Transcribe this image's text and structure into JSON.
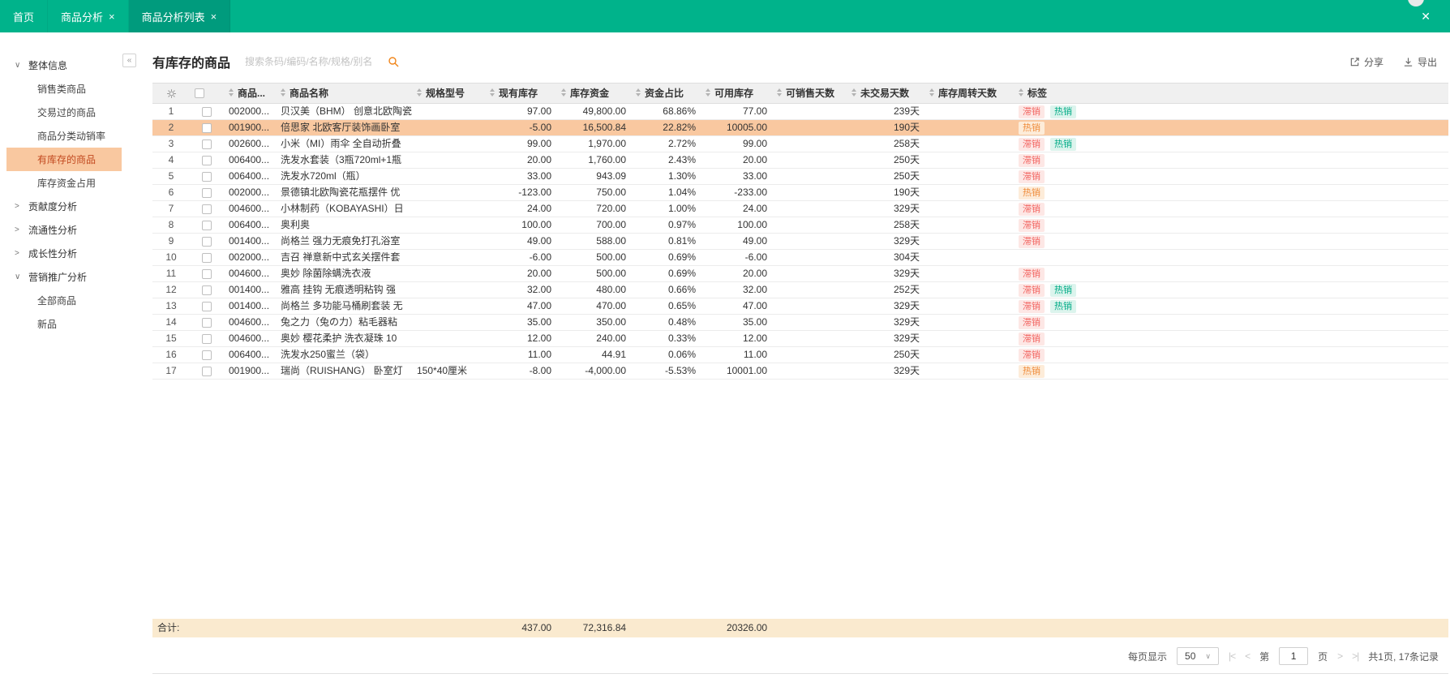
{
  "colors": {
    "accent_teal": "#00b38b",
    "active_tab": "#009b7d",
    "highlight_orange": "#f9c8a0",
    "summary_bg": "#faeacf",
    "tag_red": "#f2635f",
    "tag_teal": "#00ab86",
    "tag_orange": "#ef8b3a",
    "search_icon_orange": "#f08519"
  },
  "window": {
    "close": "✕"
  },
  "tabs": [
    {
      "label": "首页",
      "closable": false,
      "active": false
    },
    {
      "label": "商品分析",
      "closable": true,
      "active": false
    },
    {
      "label": "商品分析列表",
      "closable": true,
      "active": true
    }
  ],
  "sidebar": {
    "collapse_icon": "«",
    "groups": [
      {
        "label": "整体信息",
        "expanded": true,
        "selected": "有库存的商品",
        "items": [
          "销售类商品",
          "交易过的商品",
          "商品分类动销率",
          "有库存的商品",
          "库存资金占用"
        ]
      },
      {
        "label": "贡献度分析",
        "expanded": false,
        "items": []
      },
      {
        "label": "流通性分析",
        "expanded": false,
        "items": []
      },
      {
        "label": "成长性分析",
        "expanded": false,
        "items": []
      },
      {
        "label": "营销推广分析",
        "expanded": true,
        "items": [
          "全部商品",
          "新品"
        ]
      }
    ]
  },
  "main": {
    "title": "有库存的商品",
    "search_placeholder": "搜索条码/编码/名称/规格/别名",
    "share_label": "分享",
    "export_label": "导出",
    "table": {
      "columns": [
        "商品...",
        "商品名称",
        "规格型号",
        "现有库存",
        "库存资金",
        "资金占比",
        "可用库存",
        "可销售天数",
        "未交易天数",
        "库存周转天数",
        "标签"
      ],
      "rows": [
        {
          "index": "1",
          "code": "002000...",
          "name": "贝汉美（BHM） 创意北欧陶瓷",
          "spec": "",
          "stock": "97.00",
          "fund": "49,800.00",
          "ratio": "68.86%",
          "avail": "77.00",
          "sell_days": "",
          "no_trade": "239天",
          "turnover": "",
          "highlight": false,
          "tags": [
            {
              "text": "滞销",
              "type": "red"
            },
            {
              "text": "热销",
              "type": "teal"
            }
          ]
        },
        {
          "index": "2",
          "code": "001900...",
          "name": "倍思家 北欧客厅装饰画卧室",
          "spec": "",
          "stock": "-5.00",
          "fund": "16,500.84",
          "ratio": "22.82%",
          "avail": "10005.00",
          "sell_days": "",
          "no_trade": "190天",
          "turnover": "",
          "highlight": true,
          "tags": [
            {
              "text": "热销",
              "type": "orange"
            }
          ]
        },
        {
          "index": "3",
          "code": "002600...",
          "name": "小米（MI）雨伞 全自动折叠",
          "spec": "",
          "stock": "99.00",
          "fund": "1,970.00",
          "ratio": "2.72%",
          "avail": "99.00",
          "sell_days": "",
          "no_trade": "258天",
          "turnover": "",
          "highlight": false,
          "tags": [
            {
              "text": "滞销",
              "type": "red"
            },
            {
              "text": "热销",
              "type": "teal"
            }
          ]
        },
        {
          "index": "4",
          "code": "006400...",
          "name": "洗发水套装（3瓶720ml+1瓶",
          "spec": "",
          "stock": "20.00",
          "fund": "1,760.00",
          "ratio": "2.43%",
          "avail": "20.00",
          "sell_days": "",
          "no_trade": "250天",
          "turnover": "",
          "highlight": false,
          "tags": [
            {
              "text": "滞销",
              "type": "red"
            }
          ]
        },
        {
          "index": "5",
          "code": "006400...",
          "name": "洗发水720ml（瓶）",
          "spec": "",
          "stock": "33.00",
          "fund": "943.09",
          "ratio": "1.30%",
          "avail": "33.00",
          "sell_days": "",
          "no_trade": "250天",
          "turnover": "",
          "highlight": false,
          "tags": [
            {
              "text": "滞销",
              "type": "red"
            }
          ]
        },
        {
          "index": "6",
          "code": "002000...",
          "name": "景德镇北欧陶瓷花瓶摆件 优",
          "spec": "",
          "stock": "-123.00",
          "fund": "750.00",
          "ratio": "1.04%",
          "avail": "-233.00",
          "sell_days": "",
          "no_trade": "190天",
          "turnover": "",
          "highlight": false,
          "tags": [
            {
              "text": "热销",
              "type": "orange"
            }
          ]
        },
        {
          "index": "7",
          "code": "004600...",
          "name": "小林制药（KOBAYASHI）日",
          "spec": "",
          "stock": "24.00",
          "fund": "720.00",
          "ratio": "1.00%",
          "avail": "24.00",
          "sell_days": "",
          "no_trade": "329天",
          "turnover": "",
          "highlight": false,
          "tags": [
            {
              "text": "滞销",
              "type": "red"
            }
          ]
        },
        {
          "index": "8",
          "code": "006400...",
          "name": "奥利奥",
          "spec": "",
          "stock": "100.00",
          "fund": "700.00",
          "ratio": "0.97%",
          "avail": "100.00",
          "sell_days": "",
          "no_trade": "258天",
          "turnover": "",
          "highlight": false,
          "tags": [
            {
              "text": "滞销",
              "type": "red"
            }
          ]
        },
        {
          "index": "9",
          "code": "001400...",
          "name": "尚格兰 强力无痕免打孔浴室",
          "spec": "",
          "stock": "49.00",
          "fund": "588.00",
          "ratio": "0.81%",
          "avail": "49.00",
          "sell_days": "",
          "no_trade": "329天",
          "turnover": "",
          "highlight": false,
          "tags": [
            {
              "text": "滞销",
              "type": "red"
            }
          ]
        },
        {
          "index": "10",
          "code": "002000...",
          "name": "吉召 禅意新中式玄关摆件套",
          "spec": "",
          "stock": "-6.00",
          "fund": "500.00",
          "ratio": "0.69%",
          "avail": "-6.00",
          "sell_days": "",
          "no_trade": "304天",
          "turnover": "",
          "highlight": false,
          "tags": []
        },
        {
          "index": "11",
          "code": "004600...",
          "name": "奥妙 除菌除螨洗衣液",
          "spec": "",
          "stock": "20.00",
          "fund": "500.00",
          "ratio": "0.69%",
          "avail": "20.00",
          "sell_days": "",
          "no_trade": "329天",
          "turnover": "",
          "highlight": false,
          "tags": [
            {
              "text": "滞销",
              "type": "red"
            }
          ]
        },
        {
          "index": "12",
          "code": "001400...",
          "name": "雅高 挂钩 无痕透明粘钩 强",
          "spec": "",
          "stock": "32.00",
          "fund": "480.00",
          "ratio": "0.66%",
          "avail": "32.00",
          "sell_days": "",
          "no_trade": "252天",
          "turnover": "",
          "highlight": false,
          "tags": [
            {
              "text": "滞销",
              "type": "red"
            },
            {
              "text": "热销",
              "type": "teal"
            }
          ]
        },
        {
          "index": "13",
          "code": "001400...",
          "name": "尚格兰 多功能马桶刷套装 无",
          "spec": "",
          "stock": "47.00",
          "fund": "470.00",
          "ratio": "0.65%",
          "avail": "47.00",
          "sell_days": "",
          "no_trade": "329天",
          "turnover": "",
          "highlight": false,
          "tags": [
            {
              "text": "滞销",
              "type": "red"
            },
            {
              "text": "热销",
              "type": "teal"
            }
          ]
        },
        {
          "index": "14",
          "code": "004600...",
          "name": "兔之力（兔の力）粘毛器粘",
          "spec": "",
          "stock": "35.00",
          "fund": "350.00",
          "ratio": "0.48%",
          "avail": "35.00",
          "sell_days": "",
          "no_trade": "329天",
          "turnover": "",
          "highlight": false,
          "tags": [
            {
              "text": "滞销",
              "type": "red"
            }
          ]
        },
        {
          "index": "15",
          "code": "004600...",
          "name": "奥妙 樱花柔护 洗衣凝珠 10",
          "spec": "",
          "stock": "12.00",
          "fund": "240.00",
          "ratio": "0.33%",
          "avail": "12.00",
          "sell_days": "",
          "no_trade": "329天",
          "turnover": "",
          "highlight": false,
          "tags": [
            {
              "text": "滞销",
              "type": "red"
            }
          ]
        },
        {
          "index": "16",
          "code": "006400...",
          "name": "洗发水250蜜兰（袋）",
          "spec": "",
          "stock": "11.00",
          "fund": "44.91",
          "ratio": "0.06%",
          "avail": "11.00",
          "sell_days": "",
          "no_trade": "250天",
          "turnover": "",
          "highlight": false,
          "tags": [
            {
              "text": "滞销",
              "type": "red"
            }
          ]
        },
        {
          "index": "17",
          "code": "001900...",
          "name": "瑞尚（RUISHANG） 卧室灯",
          "spec": "150*40厘米",
          "stock": "-8.00",
          "fund": "-4,000.00",
          "ratio": "-5.53%",
          "avail": "10001.00",
          "sell_days": "",
          "no_trade": "329天",
          "turnover": "",
          "highlight": false,
          "tags": [
            {
              "text": "热销",
              "type": "orange"
            }
          ]
        }
      ],
      "summary": {
        "label": "合计:",
        "stock": "437.00",
        "fund": "72,316.84",
        "avail": "20326.00"
      }
    },
    "pagination": {
      "page_size_label": "每页显示",
      "page_size": "50",
      "first": "|<",
      "prev": "<",
      "page_prefix": "第",
      "page": "1",
      "page_suffix": "页",
      "next": ">",
      "last": ">|",
      "total": "共1页, 17条记录"
    }
  }
}
